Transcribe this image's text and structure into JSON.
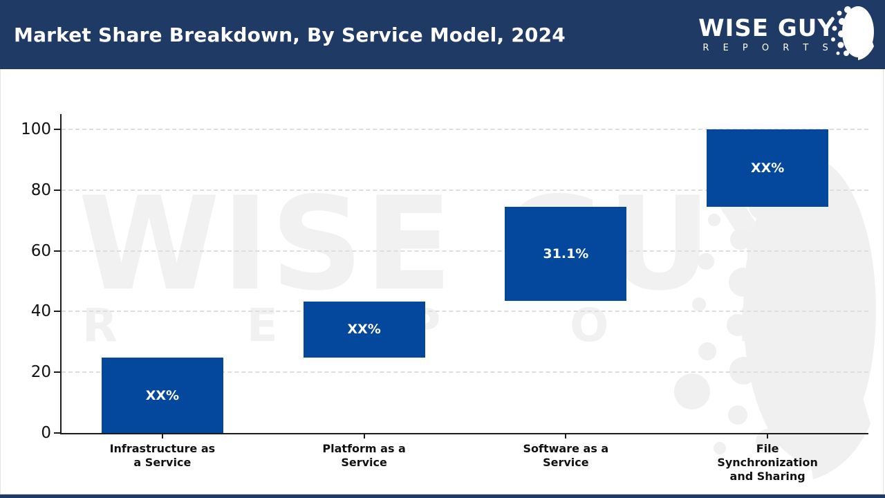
{
  "header": {
    "title": "Market Share Breakdown, By Service Model, 2024",
    "logo": {
      "name": "WISE GUY",
      "tagline": "REPORTS"
    }
  },
  "watermark": {
    "name": "WISE GUY",
    "tagline": "REPORTS"
  },
  "colors": {
    "header_bg": "#203A66",
    "footer_bg": "#203A66",
    "bar_fill": "#04489E",
    "bar_label": "#FFFFFF",
    "axis": "#1B1B1B",
    "grid": "#DEDEDE",
    "tick_label": "#111111",
    "watermark": "#F1F1F1"
  },
  "chart_data": {
    "type": "bar",
    "subtype": "waterfall",
    "title": "Market Share Breakdown, By Service Model, 2024",
    "categories": [
      "Infrastructure as a Service",
      "Platform as a Service",
      "Software as a Service",
      "File Synchronization and Sharing"
    ],
    "category_label_lines": [
      [
        "Infrastructure as",
        "a Service"
      ],
      [
        "Platform as a",
        "Service"
      ],
      [
        "Software as a",
        "Service"
      ],
      [
        "File",
        "Synchronization",
        "and Sharing"
      ]
    ],
    "segments": [
      {
        "category": "Infrastructure as a Service",
        "start": 0,
        "end": 24.8,
        "value": 24.8,
        "label": "XX%"
      },
      {
        "category": "Platform as a Service",
        "start": 24.8,
        "end": 43.4,
        "value": 18.6,
        "label": "XX%"
      },
      {
        "category": "Software as a Service",
        "start": 43.4,
        "end": 74.5,
        "value": 31.1,
        "label": "31.1%"
      },
      {
        "category": "File Synchronization and Sharing",
        "start": 74.5,
        "end": 100.0,
        "value": 25.5,
        "label": "XX%"
      }
    ],
    "y_ticks": [
      0,
      20,
      40,
      60,
      80,
      100
    ],
    "ylim": [
      0,
      105
    ],
    "xlabel": "",
    "ylabel": "",
    "grid": "horizontal-dashed",
    "legend": "none"
  }
}
